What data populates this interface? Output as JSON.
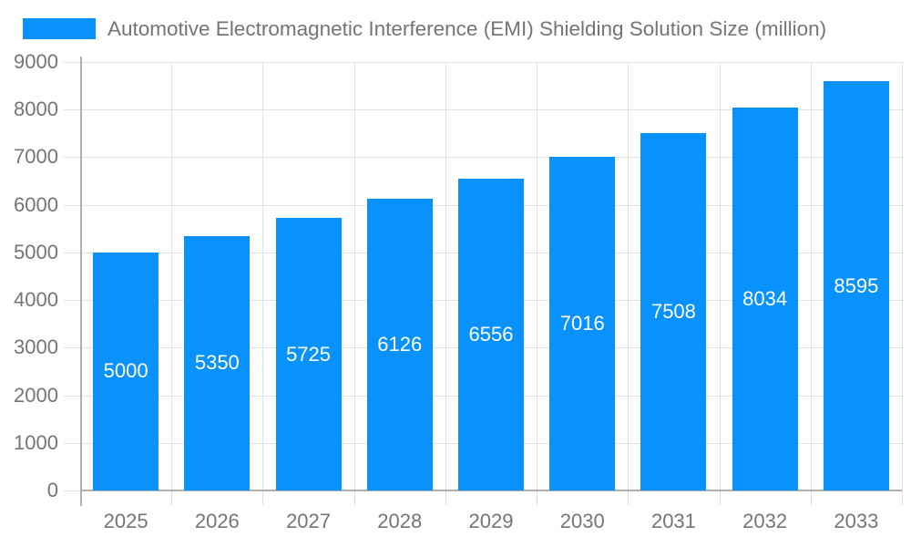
{
  "legend": {
    "label": "Automotive Electromagnetic Interference (EMI) Shielding Solution Size (million)",
    "swatch_color": "#0992fb"
  },
  "chart_data": {
    "type": "bar",
    "title": "Automotive Electromagnetic Interference (EMI) Shielding Solution Size (million)",
    "categories": [
      "2025",
      "2026",
      "2027",
      "2028",
      "2029",
      "2030",
      "2031",
      "2032",
      "2033"
    ],
    "values": [
      5000,
      5350,
      5725,
      6126,
      6556,
      7016,
      7508,
      8034,
      8595
    ],
    "xlabel": "",
    "ylabel": "",
    "ylim": [
      0,
      9000
    ],
    "ytick_step": 1000,
    "ytick_labels": [
      "0",
      "1000",
      "2000",
      "3000",
      "4000",
      "5000",
      "6000",
      "7000",
      "8000",
      "9000"
    ],
    "grid": true,
    "legend_position": "top-left",
    "bar_color": "#0992fb",
    "value_label_color": "#ffffff",
    "axis_text_color": "#757575",
    "gridline_color": "#e2e2e2",
    "axis_line_color": "#b0b0b0",
    "background_color": "#ffffff"
  }
}
